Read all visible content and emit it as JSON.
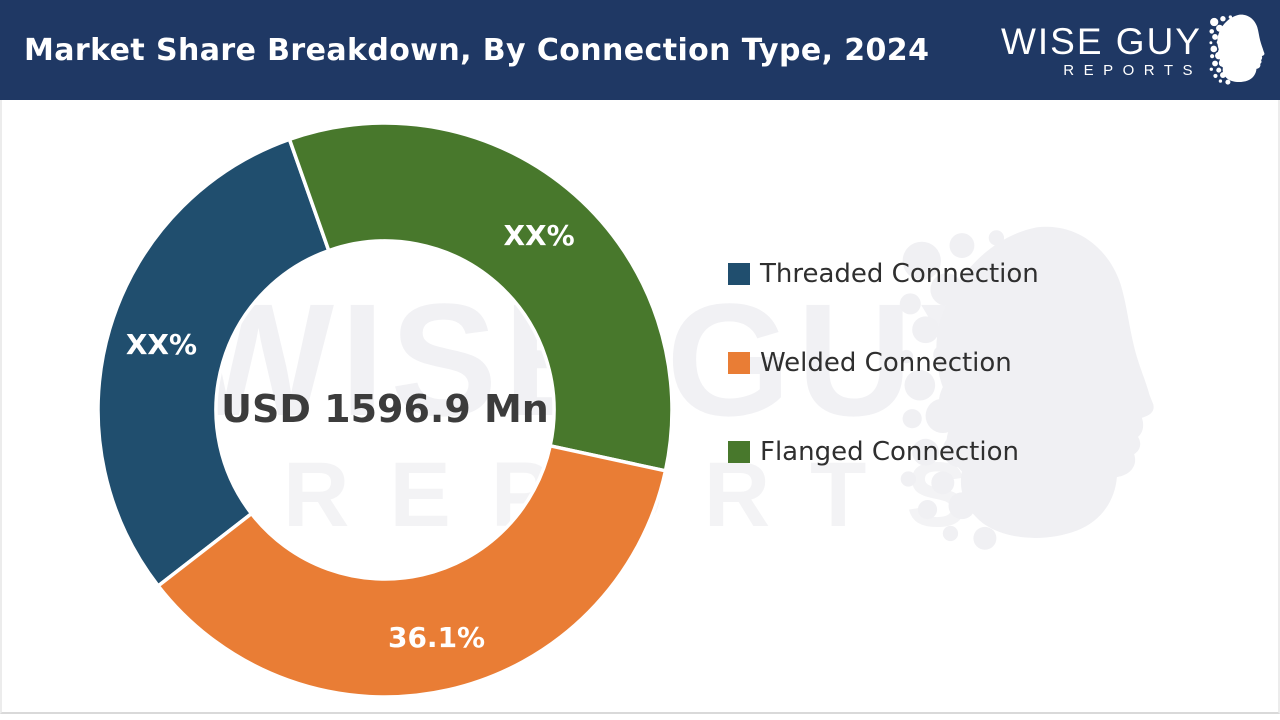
{
  "header": {
    "title": "Market Share Breakdown, By Connection Type, 2024",
    "bg_color": "#1F3864",
    "logo": {
      "line1": "WISE GUY",
      "line2": "REPORTS"
    }
  },
  "watermark": {
    "line1": "WISE GUY",
    "line2": "REPORTS"
  },
  "chart_data": {
    "type": "pie",
    "subtype": "donut",
    "title": "Market Share Breakdown, By Connection Type, 2024",
    "center_label": "USD 1596.9 Mn",
    "legend_position": "right",
    "start_angle_deg": 232.2,
    "draw_order": [
      0,
      2,
      1
    ],
    "separator_color": "#ffffff",
    "segments": [
      {
        "label": "Threaded Connection",
        "display_pct": "XX%",
        "est_value_pct": 30.1,
        "color": "#204E6E"
      },
      {
        "label": "Welded Connection",
        "display_pct": "36.1%",
        "est_value_pct": 36.1,
        "color": "#E97D35"
      },
      {
        "label": "Flanged Connection",
        "display_pct": "XX%",
        "est_value_pct": 33.8,
        "color": "#48782C"
      }
    ]
  },
  "frame": {
    "side_color": "#ececec",
    "bottom_color": "#d9d9d9"
  }
}
